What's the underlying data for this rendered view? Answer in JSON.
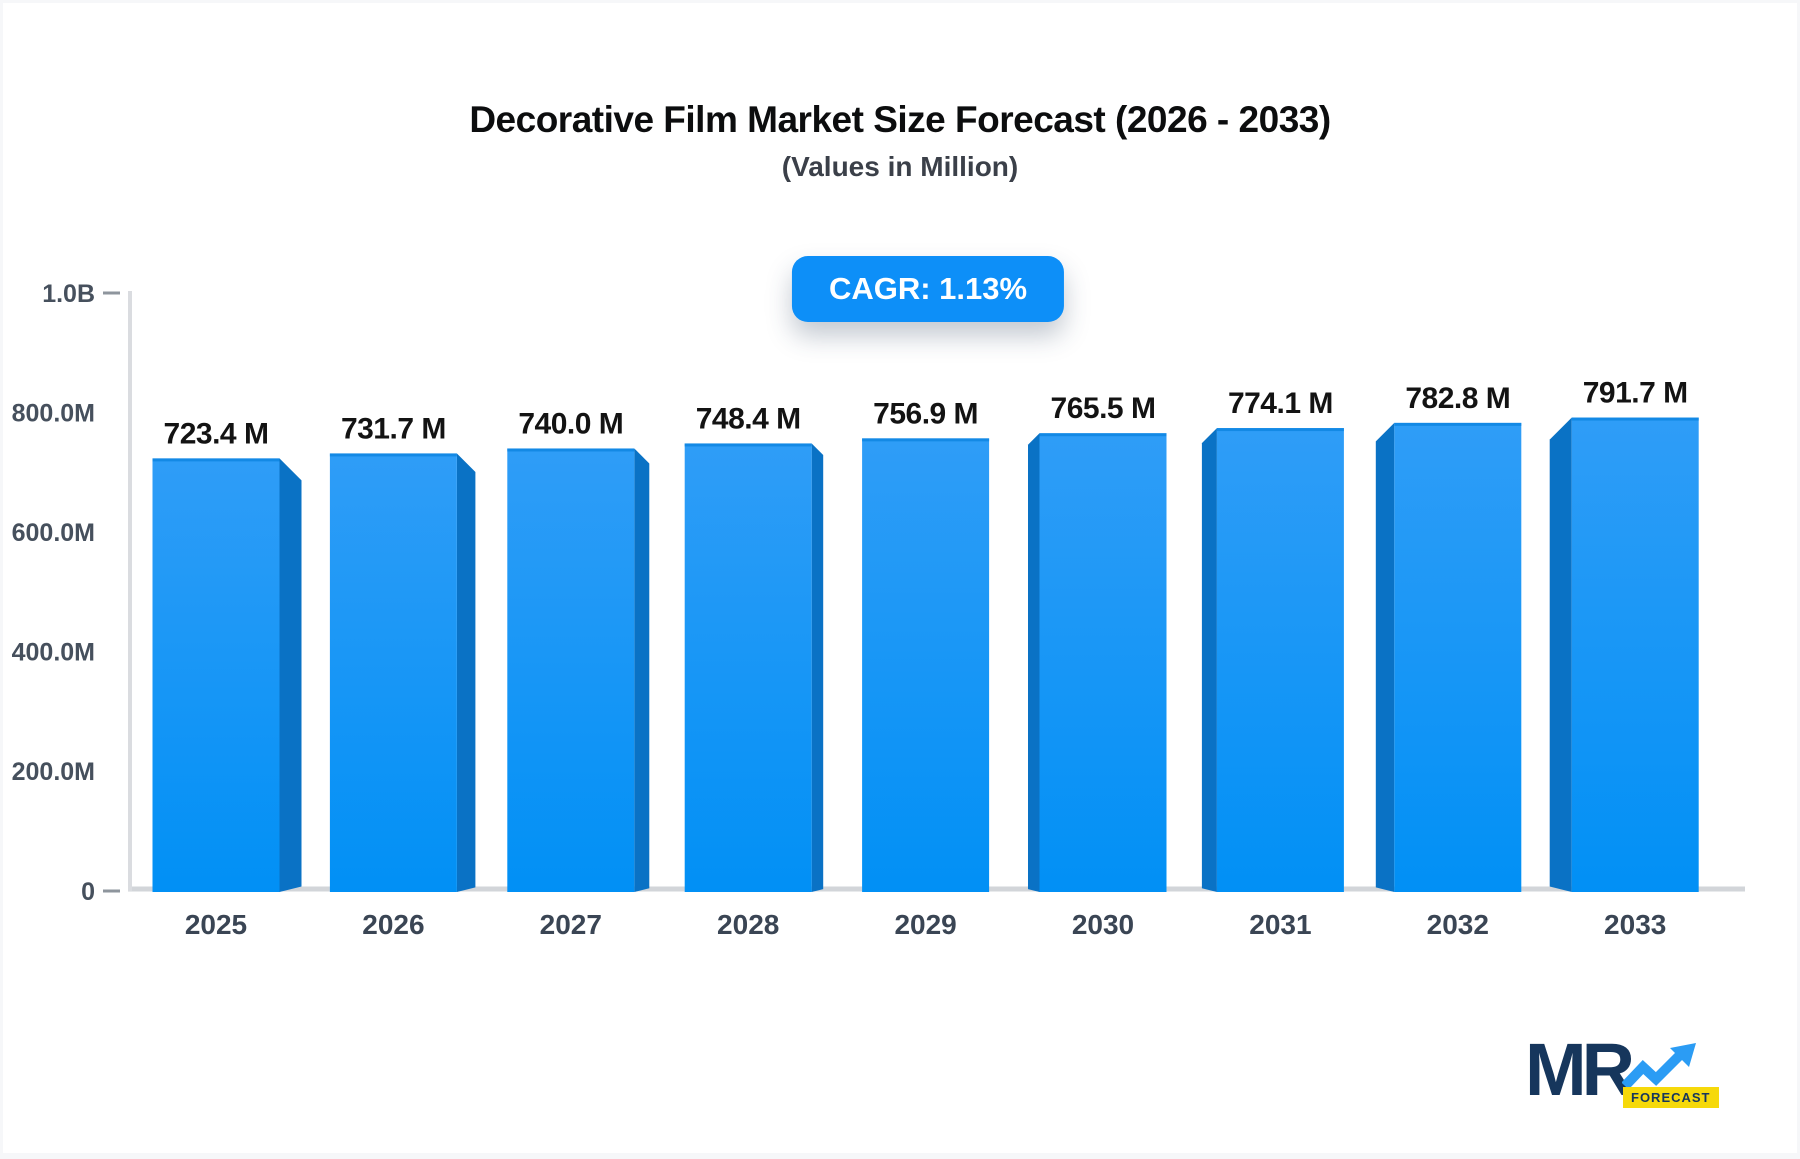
{
  "page": {
    "title": "Decorative Film Market Size Forecast (2026 - 2033)",
    "subtitle": "(Values in Million)"
  },
  "badge": {
    "label": "CAGR: 1.13%",
    "background": "#0d8ff8",
    "text_color": "#ffffff"
  },
  "chart_data": {
    "type": "bar",
    "title": "Decorative Film Market Size Forecast (2026 - 2033)",
    "subtitle": "(Values in Million)",
    "cagr": "1.13%",
    "categories": [
      "2025",
      "2026",
      "2027",
      "2028",
      "2029",
      "2030",
      "2031",
      "2032",
      "2033"
    ],
    "values": [
      723.4,
      731.7,
      740.0,
      748.4,
      756.9,
      765.5,
      774.1,
      782.8,
      791.7
    ],
    "value_labels": [
      "723.4 M",
      "731.7 M",
      "740.0 M",
      "748.4 M",
      "756.9 M",
      "765.5 M",
      "774.1 M",
      "782.8 M",
      "791.7 M"
    ],
    "ylim": [
      0,
      1000
    ],
    "yticks": [
      {
        "label": "1.0B",
        "value": 1000,
        "dash": true
      },
      {
        "label": "800.0M",
        "value": 800,
        "dash": false
      },
      {
        "label": "600.0M",
        "value": 600,
        "dash": false
      },
      {
        "label": "400.0M",
        "value": 400,
        "dash": false
      },
      {
        "label": "200.0M",
        "value": 200,
        "dash": false
      },
      {
        "label": "0",
        "value": 0,
        "dash": true
      }
    ],
    "grid": false,
    "legend": false,
    "style_3d": true,
    "colors": {
      "face_top": "#2f9df7",
      "face_bottom": "#0190f5",
      "side": "#0a72c5",
      "top_edge": "#0e86e2",
      "axis_line": "#dadce0",
      "baseline": "#d2d5d9",
      "tick_dash": "#8e959d",
      "ytick_text": "#46505d",
      "xtick_text": "#3a4554",
      "value_text": "#131313"
    }
  },
  "logo": {
    "name": "MR Forecast logo",
    "mr": "MR",
    "forecast": "FORECAST",
    "colors": {
      "navy": "#16365c",
      "blue": "#2b9cf4",
      "yellow": "#f6d90a"
    }
  }
}
